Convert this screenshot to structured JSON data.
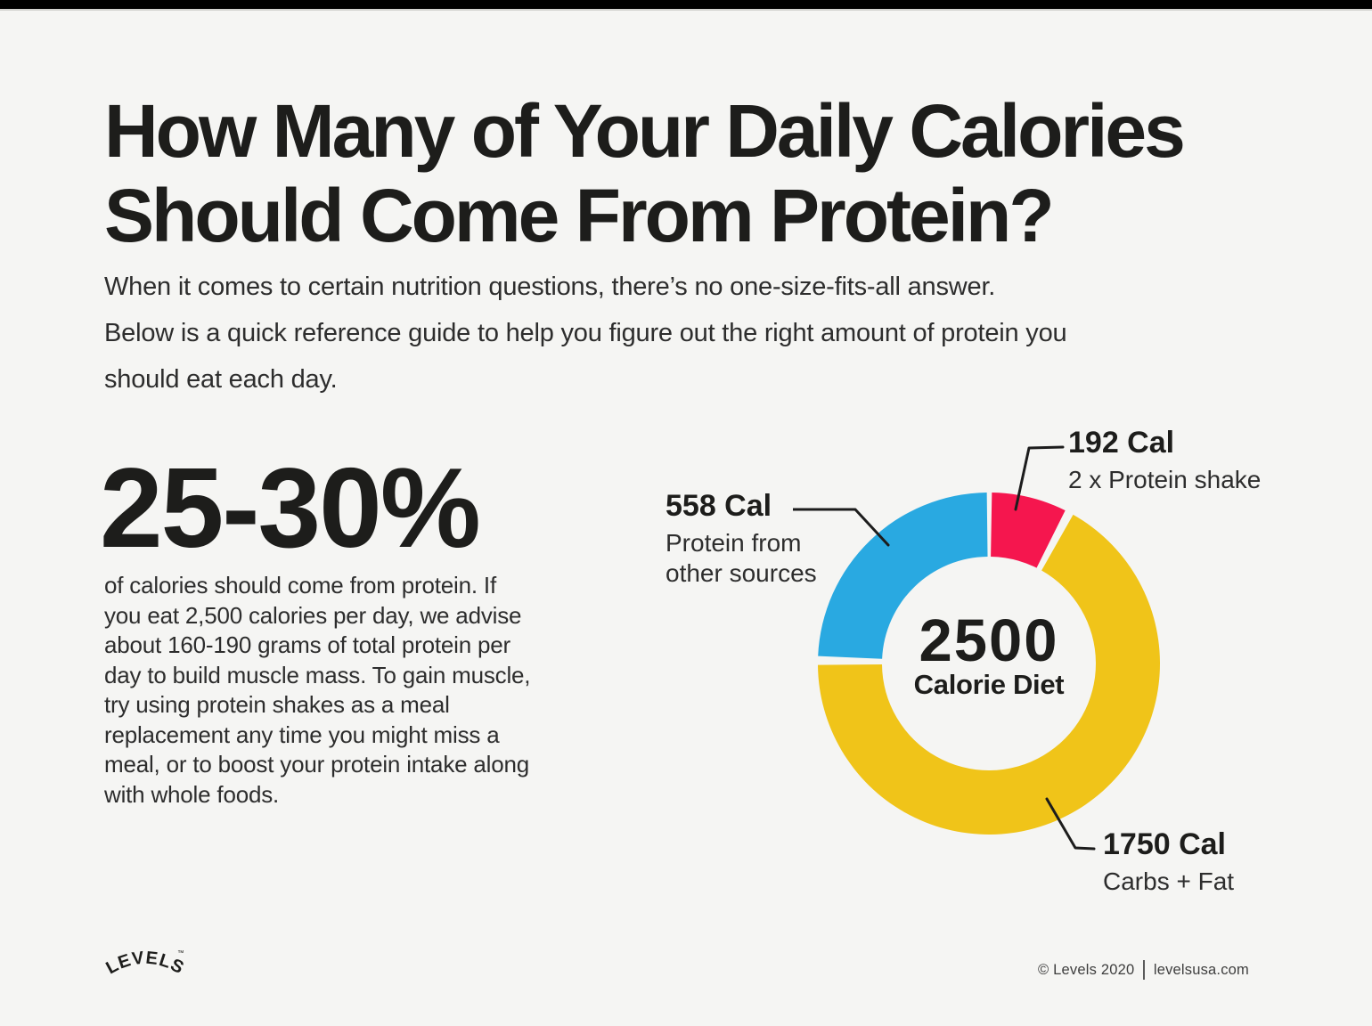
{
  "header": {
    "title_lines": [
      "How Many of Your Daily Calories",
      "Should Come From Protein?"
    ],
    "intro_lines": [
      "When it comes to certain nutrition questions, there’s no one-size-fits-all answer.",
      "Below is a quick reference guide to help you figure out the right amount of protein you",
      "should eat each day."
    ]
  },
  "left_column": {
    "stat": "25-30%",
    "description_lines": [
      "of calories should come from protein. If",
      "you eat 2,500 calories per day, we advise",
      "about 160-190 grams of total protein per",
      "day to build muscle mass. To gain muscle,",
      "try using protein shakes as a meal",
      "replacement any time you might miss a",
      "meal, or to boost your protein intake along",
      "with whole foods."
    ]
  },
  "chart_data": {
    "type": "pie",
    "subtype": "donut",
    "title": "2500 Calorie Diet",
    "total_calories": 2500,
    "center": {
      "value": "2500",
      "label": "Calorie Diet"
    },
    "layout": {
      "start_angle_deg": 0,
      "direction": "clockwise",
      "legend": "callout-labels"
    },
    "slices": [
      {
        "name": "2 x Protein shake",
        "value": 192,
        "value_label": "192 Cal",
        "label_lines": [
          "2 x Protein shake"
        ],
        "color": "#F5164E"
      },
      {
        "name": "Carbs + Fat",
        "value": 1750,
        "value_label": "1750 Cal",
        "label_lines": [
          "Carbs + Fat"
        ],
        "color": "#F0C419"
      },
      {
        "name": "Protein from other sources",
        "value": 558,
        "value_label": "558 Cal",
        "label_lines": [
          "Protein from",
          "other sources"
        ],
        "color": "#29A9E1"
      }
    ]
  },
  "footer": {
    "logo_text": "LEVELS",
    "logo_tm": "™",
    "copyright": "© Levels 2020",
    "website": "levelsusa.com"
  },
  "colors": {
    "background": "#F5F5F3",
    "top_bar": "#000000",
    "heading_text": "#1D1D1B",
    "body_text": "#2D2D2D",
    "leader_line": "#1C1C1C"
  }
}
